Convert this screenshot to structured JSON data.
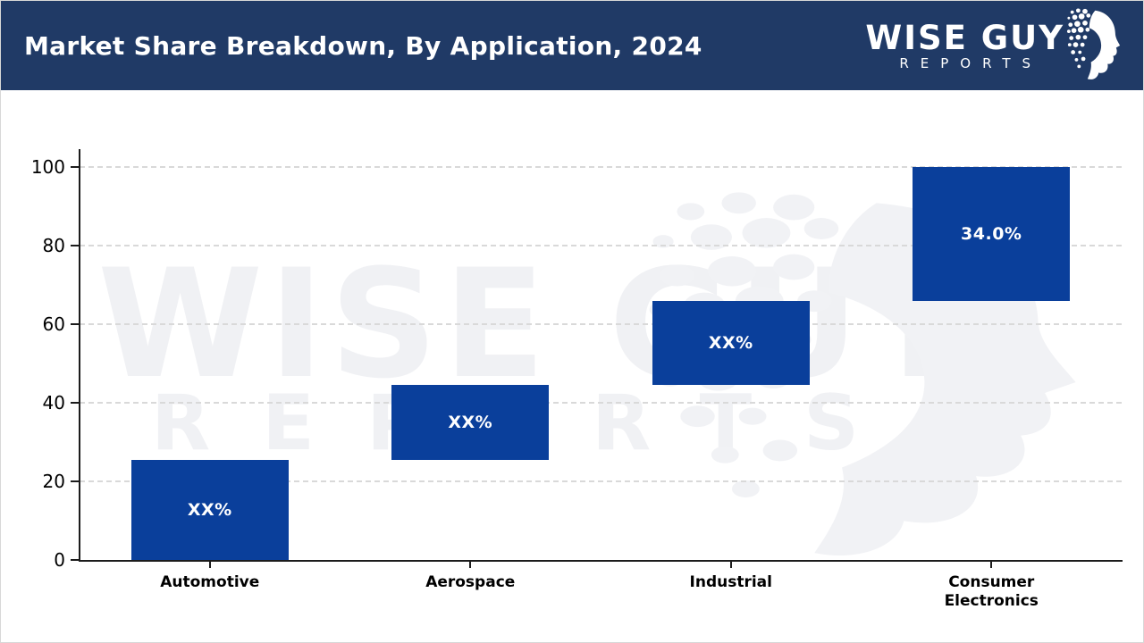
{
  "header": {
    "title": "Market Share Breakdown, By Application, 2024",
    "logo": {
      "line1": "WISE GUY",
      "line2": "REPORTS"
    }
  },
  "watermark": {
    "line1": "WISE GUY",
    "line2": "REPORTS"
  },
  "chart_data": {
    "type": "bar",
    "subtype": "floating-waterfall",
    "title": "Market Share Breakdown, By Application, 2024",
    "xlabel": "",
    "ylabel": "",
    "categories": [
      "Automotive",
      "Aerospace",
      "Industrial",
      "Consumer Electronics"
    ],
    "segments": [
      {
        "category": "Automotive",
        "start": 0,
        "end": 25.5,
        "value": 25.5,
        "label": "XX%"
      },
      {
        "category": "Aerospace",
        "start": 25.5,
        "end": 44.5,
        "value": 19.0,
        "label": "XX%"
      },
      {
        "category": "Industrial",
        "start": 44.5,
        "end": 66.0,
        "value": 21.5,
        "label": "XX%"
      },
      {
        "category": "Consumer Electronics",
        "start": 66.0,
        "end": 100.0,
        "value": 34.0,
        "label": "34.0%"
      }
    ],
    "yticks": [
      0,
      20,
      40,
      60,
      80,
      100
    ],
    "ylim": [
      0,
      104
    ],
    "grid": "horizontal-dashed",
    "legend": "none",
    "bar_color": "#0a3f9b",
    "bar_label_color": "#ffffff"
  },
  "colors": {
    "header_bg": "#203a66",
    "header_text": "#ffffff",
    "bar": "#0a3f9b",
    "gridline": "#d9d9d9",
    "axis": "#1c1c1c",
    "axis_text": "#000000",
    "watermark": "#f0f1f4",
    "page_border": "#d8d8d8"
  }
}
